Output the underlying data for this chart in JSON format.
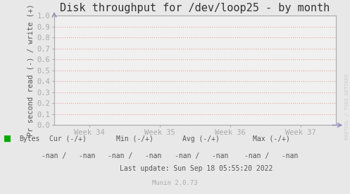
{
  "title": "Disk throughput for /dev/loop25 - by month",
  "ylabel": "Pr second read (-) / write (+)",
  "ylim": [
    0.0,
    1.0
  ],
  "yticks": [
    0.0,
    0.1,
    0.2,
    0.3,
    0.4,
    0.5,
    0.6,
    0.7,
    0.8,
    0.9,
    1.0
  ],
  "xtick_labels": [
    "Week 34",
    "Week 35",
    "Week 36",
    "Week 37"
  ],
  "background_color": "#e8e8e8",
  "plot_bg_color": "#f0f0f0",
  "grid_color": "#e8a0a0",
  "axis_color": "#aaaaaa",
  "title_color": "#333333",
  "label_color": "#555555",
  "legend_label": "Bytes",
  "legend_color": "#00aa00",
  "footer_line3": "Last update: Sun Sep 18 05:55:20 2022",
  "footer_line4": "Munin 2.0.73",
  "watermark": "RRDTOOL / TOBI OETIKER",
  "title_fontsize": 11,
  "ylabel_fontsize": 7.5,
  "tick_fontsize": 7.5,
  "footer_fontsize": 7.0,
  "watermark_fontsize": 5,
  "arrow_color": "#8888bb"
}
